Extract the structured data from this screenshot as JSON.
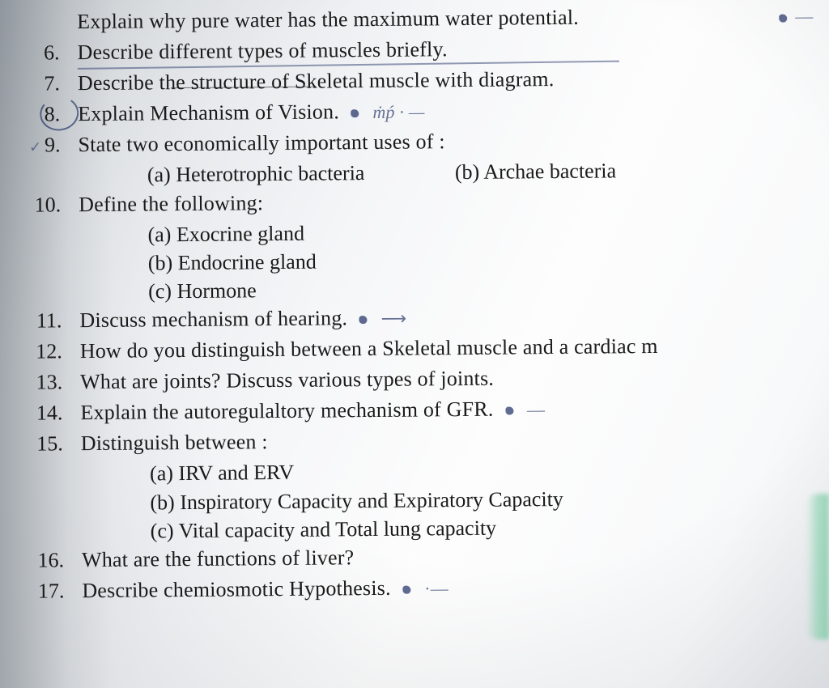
{
  "page": {
    "font_family": "Times New Roman",
    "text_color": "#1a1a1a",
    "ink_color": "#2a3a6b",
    "bg_gradient": [
      "#c8ccd0",
      "#e2e5e8",
      "#f5f6f8",
      "#fdfdfd"
    ],
    "base_fontsize": 26
  },
  "q_top1": {
    "text": "Explain why pure water has the maximum water potential."
  },
  "q6": {
    "num": "6.",
    "text": "Describe different types of muscles briefly."
  },
  "q7": {
    "num": "7.",
    "text": "Describe the structure of Skeletal muscle with diagram."
  },
  "q8": {
    "num": "8.",
    "text": "Explain Mechanism of Vision."
  },
  "q9": {
    "num": "9.",
    "text": "State two economically important uses of :",
    "a": "(a) Heterotrophic bacteria",
    "b": "(b) Archae bacteria"
  },
  "q10": {
    "num": "10.",
    "text": "Define the following:",
    "a": "(a) Exocrine gland",
    "b": "(b) Endocrine gland",
    "c": "(c) Hormone"
  },
  "q11": {
    "num": "11.",
    "text": "Discuss mechanism of hearing."
  },
  "q12": {
    "num": "12.",
    "text": "How do you distinguish between a Skeletal muscle and a cardiac m"
  },
  "q13": {
    "num": "13.",
    "text": "What are joints? Discuss various types of joints."
  },
  "q14": {
    "num": "14.",
    "text": "Explain the autoregulaltory mechanism of GFR."
  },
  "q15": {
    "num": "15.",
    "text": "Distinguish between :",
    "a": "(a) IRV and ERV",
    "b": "(b) Inspiratory Capacity and Expiratory Capacity",
    "c": "(c) Vital capacity and Total lung capacity"
  },
  "q16": {
    "num": "16.",
    "text": "What are the functions of liver?"
  },
  "q17": {
    "num": "17.",
    "text": "Describe chemiosmotic Hypothesis."
  }
}
